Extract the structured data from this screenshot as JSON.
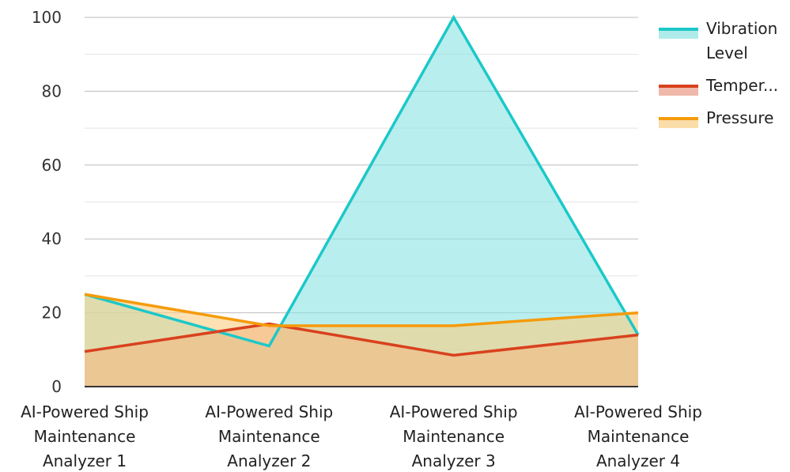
{
  "chart_data": {
    "type": "area",
    "categories": [
      [
        "AI-Powered Ship",
        "Maintenance",
        "Analyzer 1"
      ],
      [
        "AI-Powered Ship",
        "Maintenance",
        "Analyzer 2"
      ],
      [
        "AI-Powered Ship",
        "Maintenance",
        "Analyzer 3"
      ],
      [
        "AI-Powered Ship",
        "Maintenance",
        "Analyzer 4"
      ]
    ],
    "ylim": [
      0,
      100
    ],
    "y_ticks": [
      "0",
      "20",
      "40",
      "60",
      "80",
      "100"
    ],
    "minor_grid": true,
    "legend_position": "top-right",
    "series": [
      {
        "name": "Vibration Level",
        "legend_lines": [
          "Vibration",
          "Level"
        ],
        "values": [
          25,
          11,
          100,
          14
        ],
        "color": "#1cc8c8",
        "fill": "#8ee3e3"
      },
      {
        "name": "Temper...",
        "legend_lines": [
          "Temper..."
        ],
        "values": [
          9.5,
          17,
          8.5,
          14
        ],
        "color": "#d9411e",
        "fill": "#e89a86"
      },
      {
        "name": "Pressure",
        "legend_lines": [
          "Pressure"
        ],
        "values": [
          25,
          16.5,
          16.5,
          20
        ],
        "color": "#f59b0b",
        "fill": "#f8cf85"
      }
    ]
  }
}
